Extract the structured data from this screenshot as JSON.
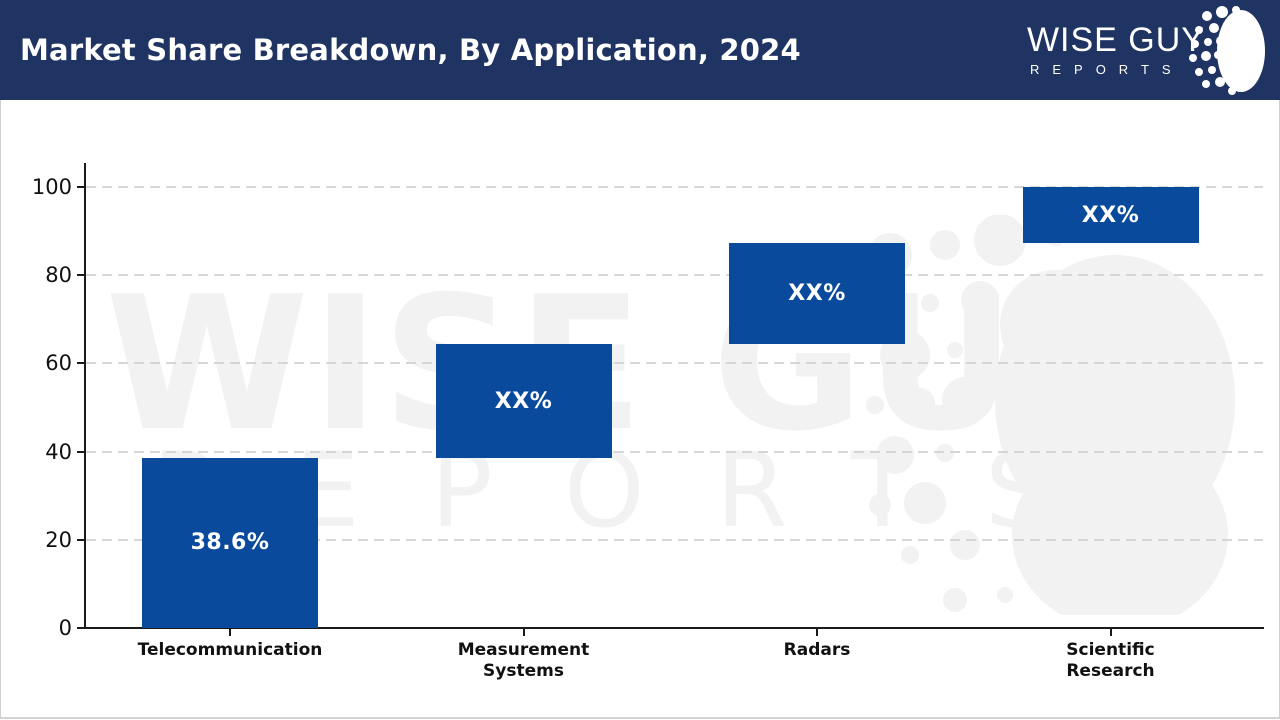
{
  "header": {
    "title": "Market Share Breakdown, By Application, 2024",
    "logo": {
      "line1": "WISE GUY",
      "line2": "REPORTS"
    }
  },
  "watermark": {
    "line1": "WISE GUY",
    "line2": "REPORTS"
  },
  "chart_data": {
    "type": "bar",
    "subtype": "waterfall",
    "title": "Market Share Breakdown, By Application, 2024",
    "categories": [
      "Telecommunication",
      "Measurement\nSystems",
      "Radars",
      "Scientific\nResearch"
    ],
    "segments": [
      {
        "category": "Telecommunication",
        "start": 0,
        "end": 38.6,
        "label": "38.6%"
      },
      {
        "category": "Measurement Systems",
        "start": 38.6,
        "end": 64.3,
        "label": "XX%"
      },
      {
        "category": "Radars",
        "start": 64.3,
        "end": 87.2,
        "label": "XX%"
      },
      {
        "category": "Scientific Research",
        "start": 87.2,
        "end": 100,
        "label": "XX%"
      }
    ],
    "yticks": [
      0,
      20,
      40,
      60,
      80,
      100
    ],
    "ylim": [
      0,
      100
    ],
    "xlabel": "",
    "ylabel": "",
    "grid": "horizontal-dashed",
    "legend": "none",
    "bar_color": "#0a4a9c"
  },
  "colors": {
    "header_bg": "#1f3462",
    "bar": "#0a4a9c",
    "grid": "#d6d6d6",
    "axis": "#1a1a1a",
    "watermark": "#f2f2f2"
  }
}
